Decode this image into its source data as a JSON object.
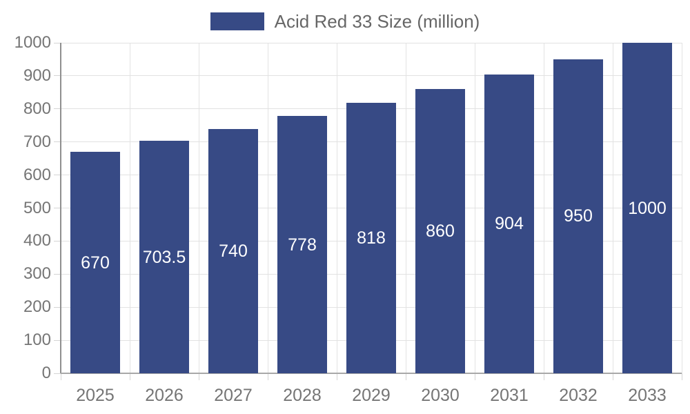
{
  "chart_data": {
    "type": "bar",
    "title": "",
    "categories": [
      "2025",
      "2026",
      "2027",
      "2028",
      "2029",
      "2030",
      "2031",
      "2032",
      "2033"
    ],
    "series": [
      {
        "name": "Acid Red 33 Size (million)",
        "values": [
          670,
          703.5,
          740,
          778,
          818,
          860,
          904,
          950,
          1000
        ]
      }
    ],
    "bar_value_labels": [
      "670",
      "703.5",
      "740",
      "778",
      "818",
      "860",
      "904",
      "950",
      "1000"
    ],
    "xlabel": "",
    "ylabel": "",
    "ylim": [
      0,
      1000
    ],
    "ytick_step": 100,
    "ytick_labels": [
      "0",
      "100",
      "200",
      "300",
      "400",
      "500",
      "600",
      "700",
      "800",
      "900",
      "1000"
    ],
    "grid": "on",
    "legend_position": "top-center",
    "colors": {
      "bar": "#374a85",
      "bar_label_text": "#ffffff",
      "grid_line": "#e2e2e2",
      "tick_mark": "#d4d4d4",
      "axis_line_y": "#8f8f8f",
      "axis_line_x": "#a8a8a8",
      "axis_text": "#757575",
      "legend_text": "#666666",
      "background": "#ffffff"
    }
  }
}
